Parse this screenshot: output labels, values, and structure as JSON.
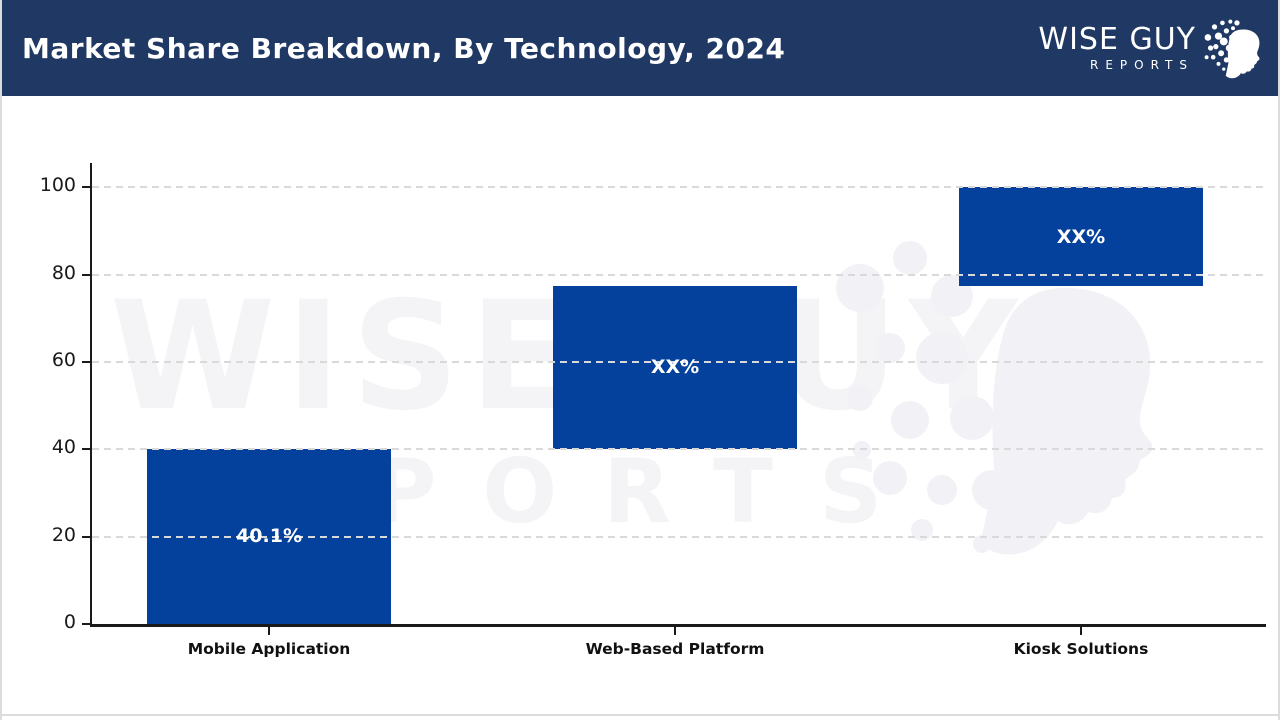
{
  "header": {
    "title": "Market Share Breakdown, By Technology, 2024",
    "bg_color": "#1f3864",
    "logo": {
      "line1": "WISE GUY",
      "line2": "REPORTS",
      "face_icon": "dotted-face-profile"
    }
  },
  "watermark": {
    "line1": "WISE GUY",
    "line2": "REPORTS",
    "face_icon": "dotted-face-profile-watermark"
  },
  "chart_data": {
    "type": "bar",
    "subtype": "stacked-waterfall",
    "title": "Market Share Breakdown, By Technology, 2024",
    "categories": [
      "Mobile Application",
      "Web-Based Platform",
      "Kiosk Solutions"
    ],
    "segments": [
      {
        "category": "Mobile Application",
        "start": 0,
        "end": 40.1,
        "label": "40.1%"
      },
      {
        "category": "Web-Based Platform",
        "start": 40.1,
        "end": 77.5,
        "label": "XX%"
      },
      {
        "category": "Kiosk Solutions",
        "start": 77.5,
        "end": 100,
        "label": "XX%"
      }
    ],
    "values_note": "middle and top segment values are redacted as XX% in the source; ends estimated from pixel positions",
    "xlabel": "",
    "ylabel": "",
    "ylim": [
      0,
      100
    ],
    "yticks": [
      0,
      20,
      40,
      60,
      80,
      100
    ],
    "grid": "horizontal dashed, drawn above bars",
    "legend": "none",
    "colors": {
      "bar": "#04419c",
      "bar_label": "#ffffff",
      "axis": "#1a1a1a",
      "gridline": "#d9d9d9",
      "header_bg": "#1f3864",
      "watermark": "#f4f4f7"
    }
  }
}
